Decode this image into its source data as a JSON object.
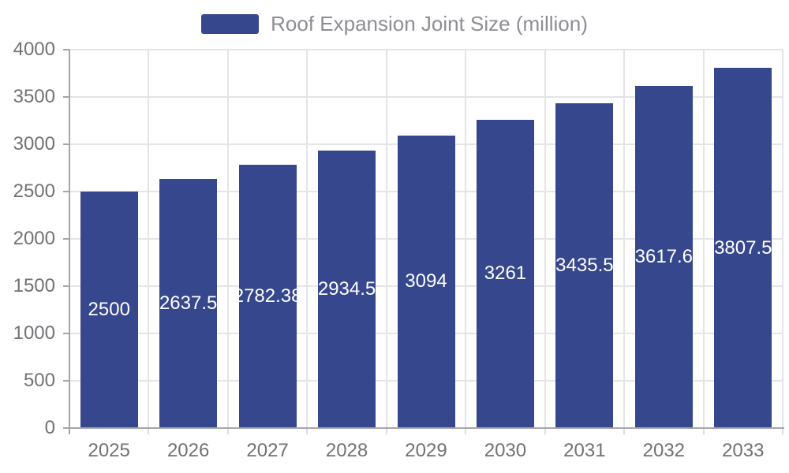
{
  "chart_data": {
    "type": "bar",
    "categories": [
      "2025",
      "2026",
      "2027",
      "2028",
      "2029",
      "2030",
      "2031",
      "2032",
      "2033"
    ],
    "series": [
      {
        "name": "Roof Expansion Joint Size (million)",
        "values": [
          2500,
          2637.5,
          2782.38,
          2934.5,
          3094,
          3261,
          3435.5,
          3617.6,
          3807.5
        ]
      }
    ],
    "bar_labels": [
      "2500",
      "2637.5",
      "2782.38",
      "2934.5",
      "3094",
      "3261",
      "3435.5",
      "3617.6",
      "3807.5"
    ],
    "y_tick_labels": [
      "0",
      "500",
      "1000",
      "1500",
      "2000",
      "2500",
      "3000",
      "3500",
      "4000"
    ],
    "title": "",
    "xlabel": "",
    "ylabel": "",
    "ylim": [
      0,
      4000
    ],
    "ytick_step": 500,
    "grid": true,
    "legend_position": "top-center",
    "bar_label_position": "inside-center"
  },
  "colors": {
    "bar": "#36478D",
    "bar_label": "#FFFFFF",
    "legend_text": "#8D8D93",
    "axis_text": "#717176",
    "grid_line": "#E4E4E9",
    "axis_line": "#A5A5AB",
    "x_tick": "#DCDCE1",
    "background": "#FFFFFF"
  }
}
